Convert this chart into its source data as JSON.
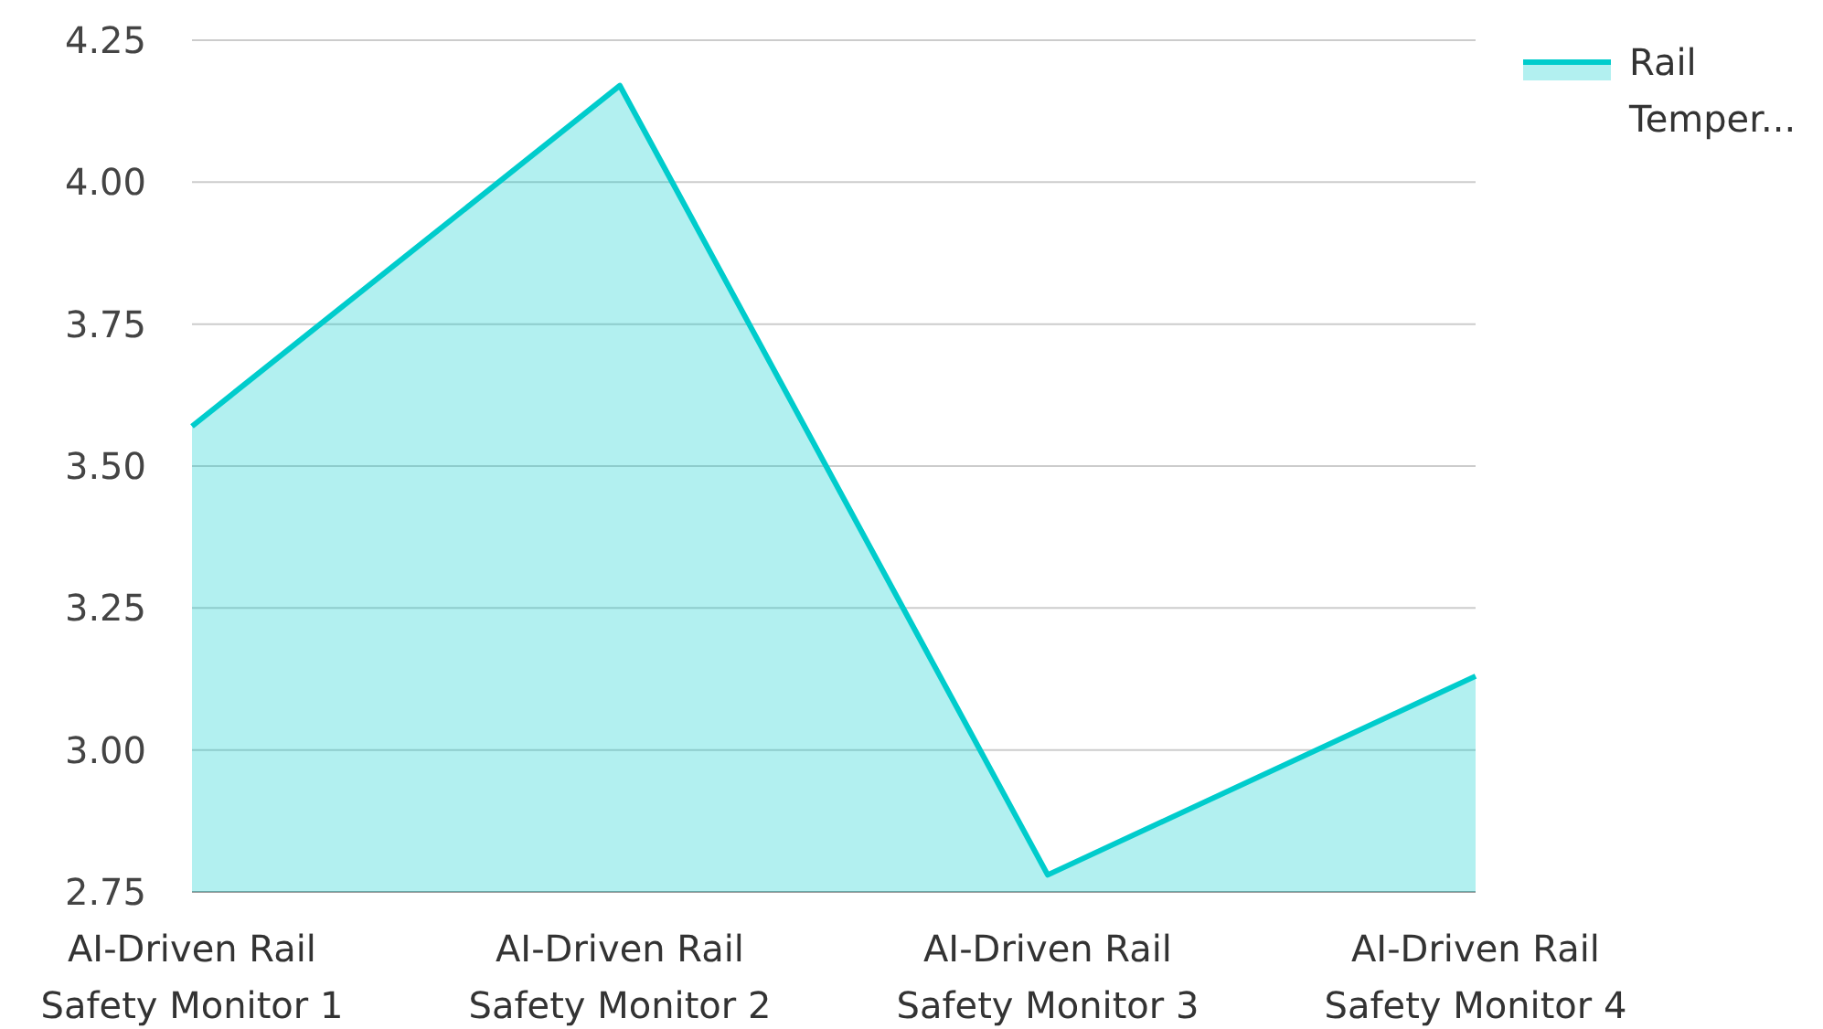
{
  "chart_data": {
    "type": "area",
    "categories": [
      "AI-Driven Rail Safety Monitor 1",
      "AI-Driven Rail Safety Monitor 2",
      "AI-Driven Rail Safety Monitor 3",
      "AI-Driven Rail Safety Monitor 4"
    ],
    "series": [
      {
        "name": "Rail Temper...",
        "color": "#00cccc",
        "values": [
          3.57,
          4.17,
          2.78,
          3.13
        ]
      }
    ],
    "ylim": [
      2.75,
      4.25
    ],
    "yticks": [
      {
        "value": 2.75,
        "label": "2.75"
      },
      {
        "value": 3,
        "label": "3.00"
      },
      {
        "value": 3.25,
        "label": "3.25"
      },
      {
        "value": 3.5,
        "label": "3.50"
      },
      {
        "value": 3.75,
        "label": "3.75"
      },
      {
        "value": 4,
        "label": "4.00"
      },
      {
        "value": 4.25,
        "label": "4.25"
      }
    ],
    "grid": "y",
    "legend": "top right"
  }
}
